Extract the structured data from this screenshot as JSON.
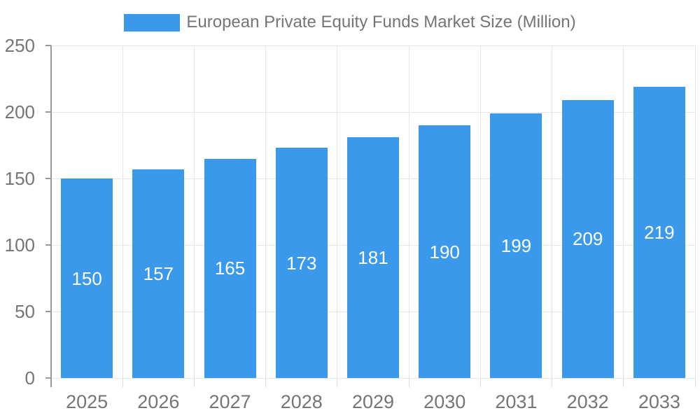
{
  "legend": {
    "label": "European Private Equity Funds Market Size (Million)"
  },
  "chart_data": {
    "type": "bar",
    "title": "European Private Equity Funds Market Size (Million)",
    "categories": [
      "2025",
      "2026",
      "2027",
      "2028",
      "2029",
      "2030",
      "2031",
      "2032",
      "2033"
    ],
    "values": [
      150,
      157,
      165,
      173,
      181,
      190,
      199,
      209,
      219
    ],
    "xlabel": "",
    "ylabel": "",
    "ylim": [
      0,
      250
    ],
    "yticks": [
      0,
      50,
      100,
      150,
      200,
      250
    ],
    "grid": true,
    "legend_position": "top-center",
    "bar_labels_inside": true,
    "colors": {
      "bar": "#3B99EC",
      "axis_text": "#757575",
      "bar_label": "#FFFFFF",
      "gridline": "#E6E6E6",
      "axis_line": "#999999",
      "x_tick": "#DCDCDC"
    }
  }
}
